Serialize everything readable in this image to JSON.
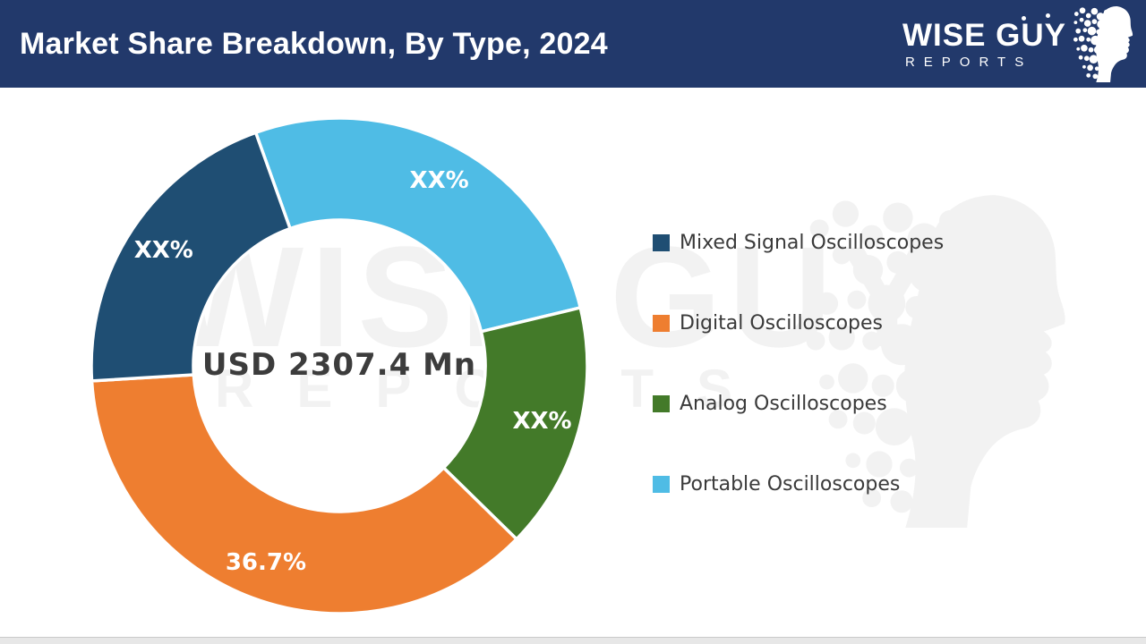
{
  "header": {
    "title": "Market Share Breakdown, By Type, 2024",
    "logo": {
      "line1": "WISE GUY",
      "line2": "REPORTS"
    }
  },
  "chart_data": {
    "type": "donut",
    "title": "Market Share Breakdown, By Type, 2024",
    "center_label": "USD 2307.4 Mn",
    "start_angle_deg": -19.7,
    "legend_position": "right",
    "segments": [
      {
        "name": "Portable Oscilloscopes",
        "value_pct": 26.7,
        "display": "XX%",
        "color": "#4FBCE5"
      },
      {
        "name": "Analog Oscilloscopes",
        "value_pct": 16.1,
        "display": "XX%",
        "color": "#437A29"
      },
      {
        "name": "Digital Oscilloscopes",
        "value_pct": 36.7,
        "display": "36.7%",
        "color": "#EE7E30"
      },
      {
        "name": "Mixed Signal Oscilloscopes",
        "value_pct": 20.5,
        "display": "XX%",
        "color": "#1F4E73"
      }
    ]
  },
  "legend": {
    "items": [
      {
        "label": "Mixed Signal Oscilloscopes",
        "color": "#1F4E73"
      },
      {
        "label": "Digital Oscilloscopes",
        "color": "#EE7E30"
      },
      {
        "label": "Analog Oscilloscopes",
        "color": "#437A29"
      },
      {
        "label": "Portable Oscilloscopes",
        "color": "#4FBCE5"
      }
    ]
  },
  "watermark": {
    "line1": "WISE GUY",
    "line2": "REPORTS"
  },
  "colors": {
    "header_bg": "#22396B",
    "watermark": "#F2F2F2",
    "center_text": "#3C3C3C",
    "legend_text": "#3A3A3A",
    "footer_bar": "#E7E7E7"
  }
}
